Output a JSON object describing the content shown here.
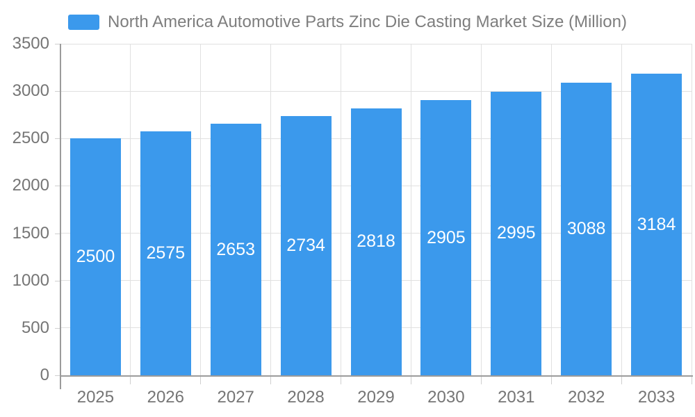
{
  "chart_data": {
    "type": "bar",
    "title": "North America Automotive Parts Zinc Die Casting Market Size (Million)",
    "categories": [
      "2025",
      "2026",
      "2027",
      "2028",
      "2029",
      "2030",
      "2031",
      "2032",
      "2033"
    ],
    "series": [
      {
        "name": "North America Automotive Parts Zinc Die Casting Market Size (Million)",
        "values": [
          2500,
          2575,
          2653,
          2734,
          2818,
          2905,
          2995,
          3088,
          3184
        ]
      }
    ],
    "bar_value_labels": [
      "2500",
      "2575",
      "2653",
      "2734",
      "2818",
      "2905",
      "2995",
      "3088",
      "3184"
    ],
    "xlabel": "",
    "ylabel": "",
    "ylim": [
      0,
      3500
    ],
    "y_ticks": [
      0,
      500,
      1000,
      1500,
      2000,
      2500,
      3000,
      3500
    ],
    "grid": true,
    "legend_position": "top",
    "value_labels_inside_bars": true
  },
  "legend": {
    "label": "North America Automotive Parts Zinc Die Casting Market Size (Million)",
    "swatch_icon": "blue-rect-swatch"
  },
  "colors": {
    "bar": "#3B99EC",
    "bar_label": "#FFFFFF",
    "grid_line": "#E0E0E0",
    "axis_line": "#9B9B9B",
    "tick": "#CFCFCF",
    "axis_text": "#757575",
    "legend_text": "#7E7E7E",
    "background": "#FFFFFF"
  }
}
